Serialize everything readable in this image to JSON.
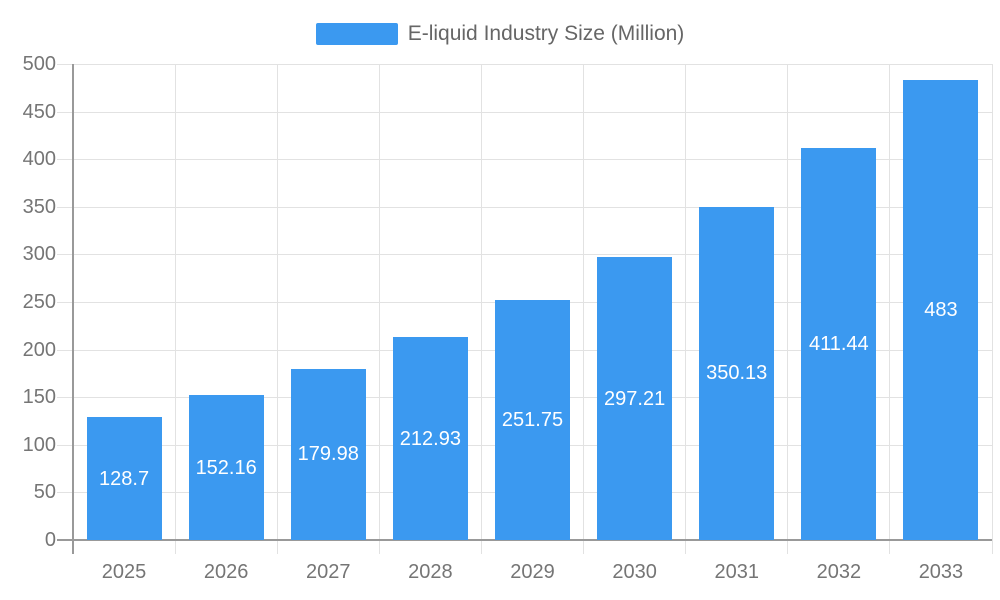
{
  "chart_data": {
    "type": "bar",
    "title": "E-liquid Industry Size (Million)",
    "legend": {
      "entries": [
        "E-liquid Industry Size (Million)"
      ],
      "position": "top-center"
    },
    "categories": [
      "2025",
      "2026",
      "2027",
      "2028",
      "2029",
      "2030",
      "2031",
      "2032",
      "2033"
    ],
    "series": [
      {
        "name": "E-liquid Industry Size (Million)",
        "values": [
          128.7,
          152.16,
          179.98,
          212.93,
          251.75,
          297.21,
          350.13,
          411.44,
          483
        ]
      }
    ],
    "value_labels": [
      "128.7",
      "152.16",
      "179.98",
      "212.93",
      "251.75",
      "297.21",
      "350.13",
      "411.44",
      "483"
    ],
    "value_label_position": "inside-center",
    "xlabel": "",
    "ylabel": "",
    "ylim": [
      0,
      500
    ],
    "ytick_step": 50,
    "yticks": [
      0,
      50,
      100,
      150,
      200,
      250,
      300,
      350,
      400,
      450,
      500
    ],
    "grid": true,
    "colors": {
      "bar": "#3b99f0",
      "value_label": "#ffffff",
      "axis_label": "#757575",
      "legend_text": "#666666",
      "grid_line": "#e2e2e2",
      "axis_line": "#999999",
      "background": "#ffffff"
    }
  }
}
